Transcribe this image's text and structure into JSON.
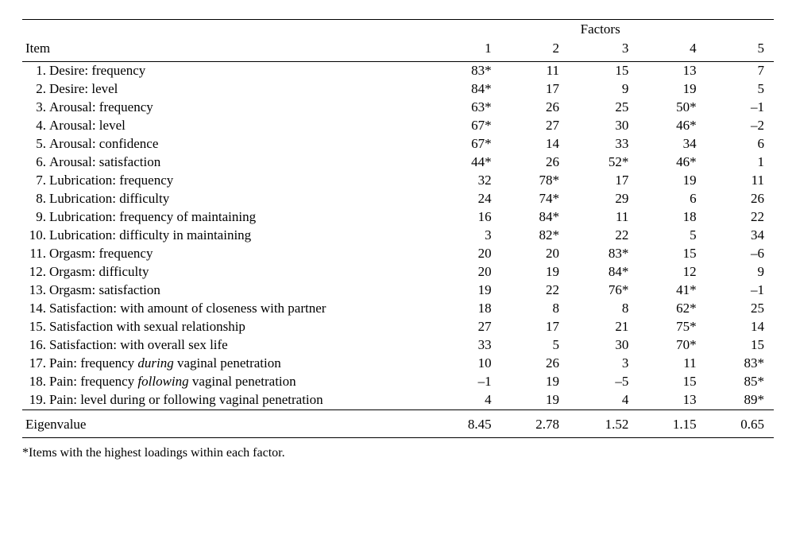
{
  "headers": {
    "item_label": "Item",
    "factors_label": "Factors",
    "factor_nums": [
      "1",
      "2",
      "3",
      "4",
      "5"
    ]
  },
  "rows": [
    {
      "num": "1.",
      "label": "Desire: frequency",
      "vals": [
        "83*",
        "11",
        "15",
        "13",
        "7"
      ]
    },
    {
      "num": "2.",
      "label": "Desire: level",
      "vals": [
        "84*",
        "17",
        "9",
        "19",
        "5"
      ]
    },
    {
      "num": "3.",
      "label": "Arousal: frequency",
      "vals": [
        "63*",
        "26",
        "25",
        "50*",
        "–1"
      ]
    },
    {
      "num": "4.",
      "label": "Arousal: level",
      "vals": [
        "67*",
        "27",
        "30",
        "46*",
        "–2"
      ]
    },
    {
      "num": "5.",
      "label": "Arousal: confidence",
      "vals": [
        "67*",
        "14",
        "33",
        "34",
        "6"
      ]
    },
    {
      "num": "6.",
      "label": "Arousal: satisfaction",
      "vals": [
        "44*",
        "26",
        "52*",
        "46*",
        "1"
      ]
    },
    {
      "num": "7.",
      "label": "Lubrication: frequency",
      "vals": [
        "32",
        "78*",
        "17",
        "19",
        "11"
      ]
    },
    {
      "num": "8.",
      "label": "Lubrication: difficulty",
      "vals": [
        "24",
        "74*",
        "29",
        "6",
        "26"
      ]
    },
    {
      "num": "9.",
      "label": "Lubrication: frequency of maintaining",
      "vals": [
        "16",
        "84*",
        "11",
        "18",
        "22"
      ]
    },
    {
      "num": "10.",
      "label": "Lubrication: difficulty in maintaining",
      "vals": [
        "3",
        "82*",
        "22",
        "5",
        "34"
      ]
    },
    {
      "num": "11.",
      "label": "Orgasm: frequency",
      "vals": [
        "20",
        "20",
        "83*",
        "15",
        "–6"
      ]
    },
    {
      "num": "12.",
      "label": "Orgasm: difficulty",
      "vals": [
        "20",
        "19",
        "84*",
        "12",
        "9"
      ]
    },
    {
      "num": "13.",
      "label": "Orgasm: satisfaction",
      "vals": [
        "19",
        "22",
        "76*",
        "41*",
        "–1"
      ]
    },
    {
      "num": "14.",
      "label": "Satisfaction: with amount of closeness with partner",
      "vals": [
        "18",
        "8",
        "8",
        "62*",
        "25"
      ]
    },
    {
      "num": "15.",
      "label": "Satisfaction with sexual relationship",
      "vals": [
        "27",
        "17",
        "21",
        "75*",
        "14"
      ]
    },
    {
      "num": "16.",
      "label": "Satisfaction: with overall sex life",
      "vals": [
        "33",
        "5",
        "30",
        "70*",
        "15"
      ]
    },
    {
      "num": "17.",
      "label_parts": [
        "Pain: frequency ",
        {
          "italic": "during"
        },
        " vaginal penetration"
      ],
      "vals": [
        "10",
        "26",
        "3",
        "11",
        "83*"
      ]
    },
    {
      "num": "18.",
      "label_parts": [
        "Pain: frequency ",
        {
          "italic": "following"
        },
        " vaginal penetration"
      ],
      "vals": [
        "–1",
        "19",
        "–5",
        "15",
        "85*"
      ]
    },
    {
      "num": "19.",
      "label": "Pain: level during or following vaginal penetration",
      "vals": [
        "4",
        "19",
        "4",
        "13",
        "89*"
      ]
    }
  ],
  "eigen": {
    "label": "Eigenvalue",
    "vals": [
      "8.45",
      "2.78",
      "1.52",
      "1.15",
      "0.65"
    ]
  },
  "footnote": "*Items with the highest loadings within each factor.",
  "style": {
    "font_family": "Times New Roman",
    "font_size_pt": 12,
    "text_color": "#000000",
    "background_color": "#ffffff",
    "rule_color": "#000000",
    "col_widths": {
      "item": 560,
      "factor": 74
    },
    "alignment": {
      "item": "left",
      "factor": "right"
    }
  }
}
